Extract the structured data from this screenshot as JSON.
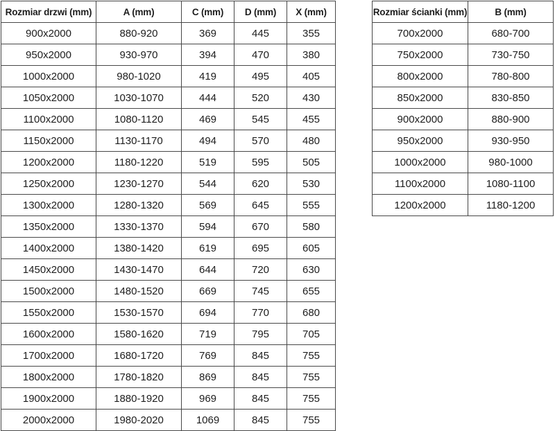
{
  "colors": {
    "border": "#474747",
    "text": "#1d1d1d",
    "background": "#ffffff"
  },
  "tables": {
    "doors": {
      "headers": [
        "Rozmiar drzwi (mm)",
        "A (mm)",
        "C (mm)",
        "D (mm)",
        "X (mm)"
      ],
      "rows": [
        [
          "900x2000",
          "880-920",
          "369",
          "445",
          "355"
        ],
        [
          "950x2000",
          "930-970",
          "394",
          "470",
          "380"
        ],
        [
          "1000x2000",
          "980-1020",
          "419",
          "495",
          "405"
        ],
        [
          "1050x2000",
          "1030-1070",
          "444",
          "520",
          "430"
        ],
        [
          "1100x2000",
          "1080-1120",
          "469",
          "545",
          "455"
        ],
        [
          "1150x2000",
          "1130-1170",
          "494",
          "570",
          "480"
        ],
        [
          "1200x2000",
          "1180-1220",
          "519",
          "595",
          "505"
        ],
        [
          "1250x2000",
          "1230-1270",
          "544",
          "620",
          "530"
        ],
        [
          "1300x2000",
          "1280-1320",
          "569",
          "645",
          "555"
        ],
        [
          "1350x2000",
          "1330-1370",
          "594",
          "670",
          "580"
        ],
        [
          "1400x2000",
          "1380-1420",
          "619",
          "695",
          "605"
        ],
        [
          "1450x2000",
          "1430-1470",
          "644",
          "720",
          "630"
        ],
        [
          "1500x2000",
          "1480-1520",
          "669",
          "745",
          "655"
        ],
        [
          "1550x2000",
          "1530-1570",
          "694",
          "770",
          "680"
        ],
        [
          "1600x2000",
          "1580-1620",
          "719",
          "795",
          "705"
        ],
        [
          "1700x2000",
          "1680-1720",
          "769",
          "845",
          "755"
        ],
        [
          "1800x2000",
          "1780-1820",
          "869",
          "845",
          "755"
        ],
        [
          "1900x2000",
          "1880-1920",
          "969",
          "845",
          "755"
        ],
        [
          "2000x2000",
          "1980-2020",
          "1069",
          "845",
          "755"
        ]
      ]
    },
    "walls": {
      "headers": [
        "Rozmiar ścianki (mm)",
        "B (mm)"
      ],
      "rows": [
        [
          "700x2000",
          "680-700"
        ],
        [
          "750x2000",
          "730-750"
        ],
        [
          "800x2000",
          "780-800"
        ],
        [
          "850x2000",
          "830-850"
        ],
        [
          "900x2000",
          "880-900"
        ],
        [
          "950x2000",
          "930-950"
        ],
        [
          "1000x2000",
          "980-1000"
        ],
        [
          "1100x2000",
          "1080-1100"
        ],
        [
          "1200x2000",
          "1180-1200"
        ]
      ]
    }
  }
}
